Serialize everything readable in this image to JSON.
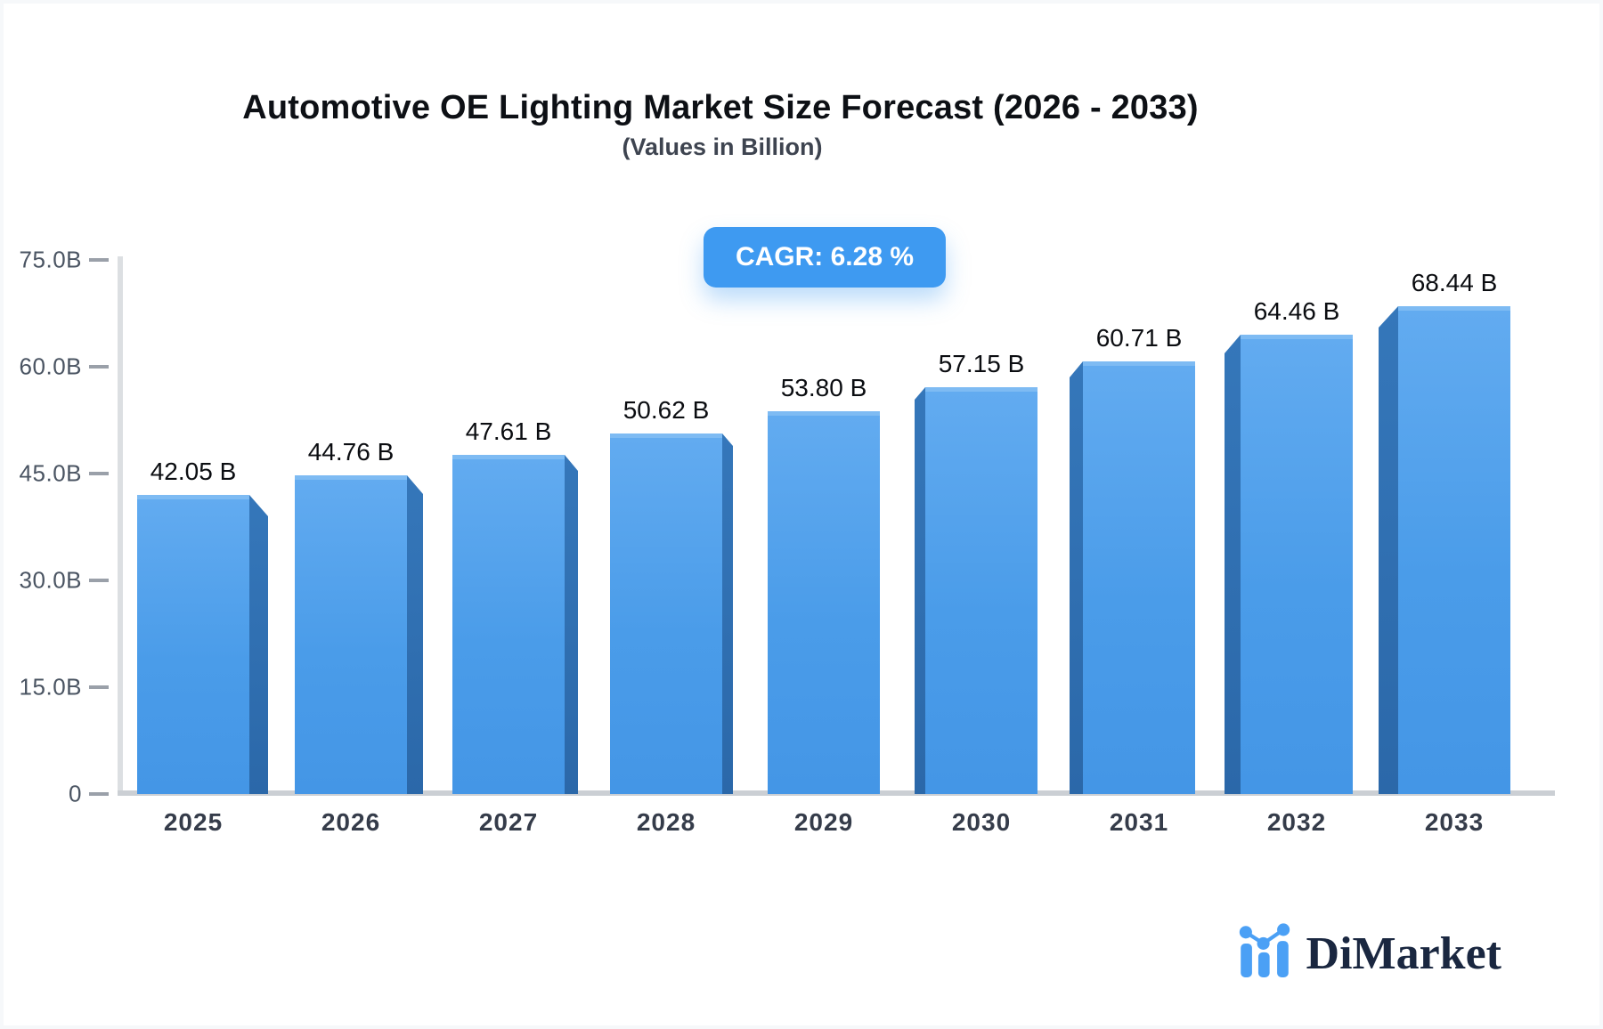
{
  "header": {
    "title": "Automotive OE Lighting Market Size Forecast (2026 - 2033)",
    "subtitle": "(Values in Billion)",
    "cagr_badge": "CAGR: 6.28 %"
  },
  "footer": {
    "brand": "DiMarket"
  },
  "colors": {
    "bar_face": "#4d9fea",
    "bar_face_light": "#62abf0",
    "bar_top_edge": "#7ebbf3",
    "bar_side": "#2e6fb2",
    "badge_bg": "#3e9af1",
    "axis_line": "#cbcfd4",
    "tick_text": "#4a5462",
    "logo_blue": "#4ba0f5",
    "logo_navy": "#1a2740"
  },
  "chart_data": {
    "type": "bar",
    "title": "Automotive OE Lighting Market Size Forecast (2026 - 2033)",
    "subtitle": "(Values in Billion)",
    "annotation": "CAGR: 6.28 %",
    "categories": [
      "2025",
      "2026",
      "2027",
      "2028",
      "2029",
      "2030",
      "2031",
      "2032",
      "2033"
    ],
    "values": [
      42.05,
      44.76,
      47.61,
      50.62,
      53.8,
      57.15,
      60.71,
      64.46,
      68.44
    ],
    "value_labels": [
      "42.05 B",
      "44.76 B",
      "47.61 B",
      "50.62 B",
      "53.80 B",
      "57.15 B",
      "60.71 B",
      "64.46 B",
      "68.44 B"
    ],
    "xlabel": "",
    "ylabel": "",
    "ytick_values": [
      0,
      15,
      30,
      45,
      60,
      75
    ],
    "ytick_labels": [
      "0",
      "15.0B",
      "30.0B",
      "45.0B",
      "60.0B",
      "75.0B"
    ],
    "ylim": [
      0,
      75
    ],
    "grid": false,
    "legend": false,
    "bar_style": "3d-bevel, perspective vanishing at center bar"
  }
}
